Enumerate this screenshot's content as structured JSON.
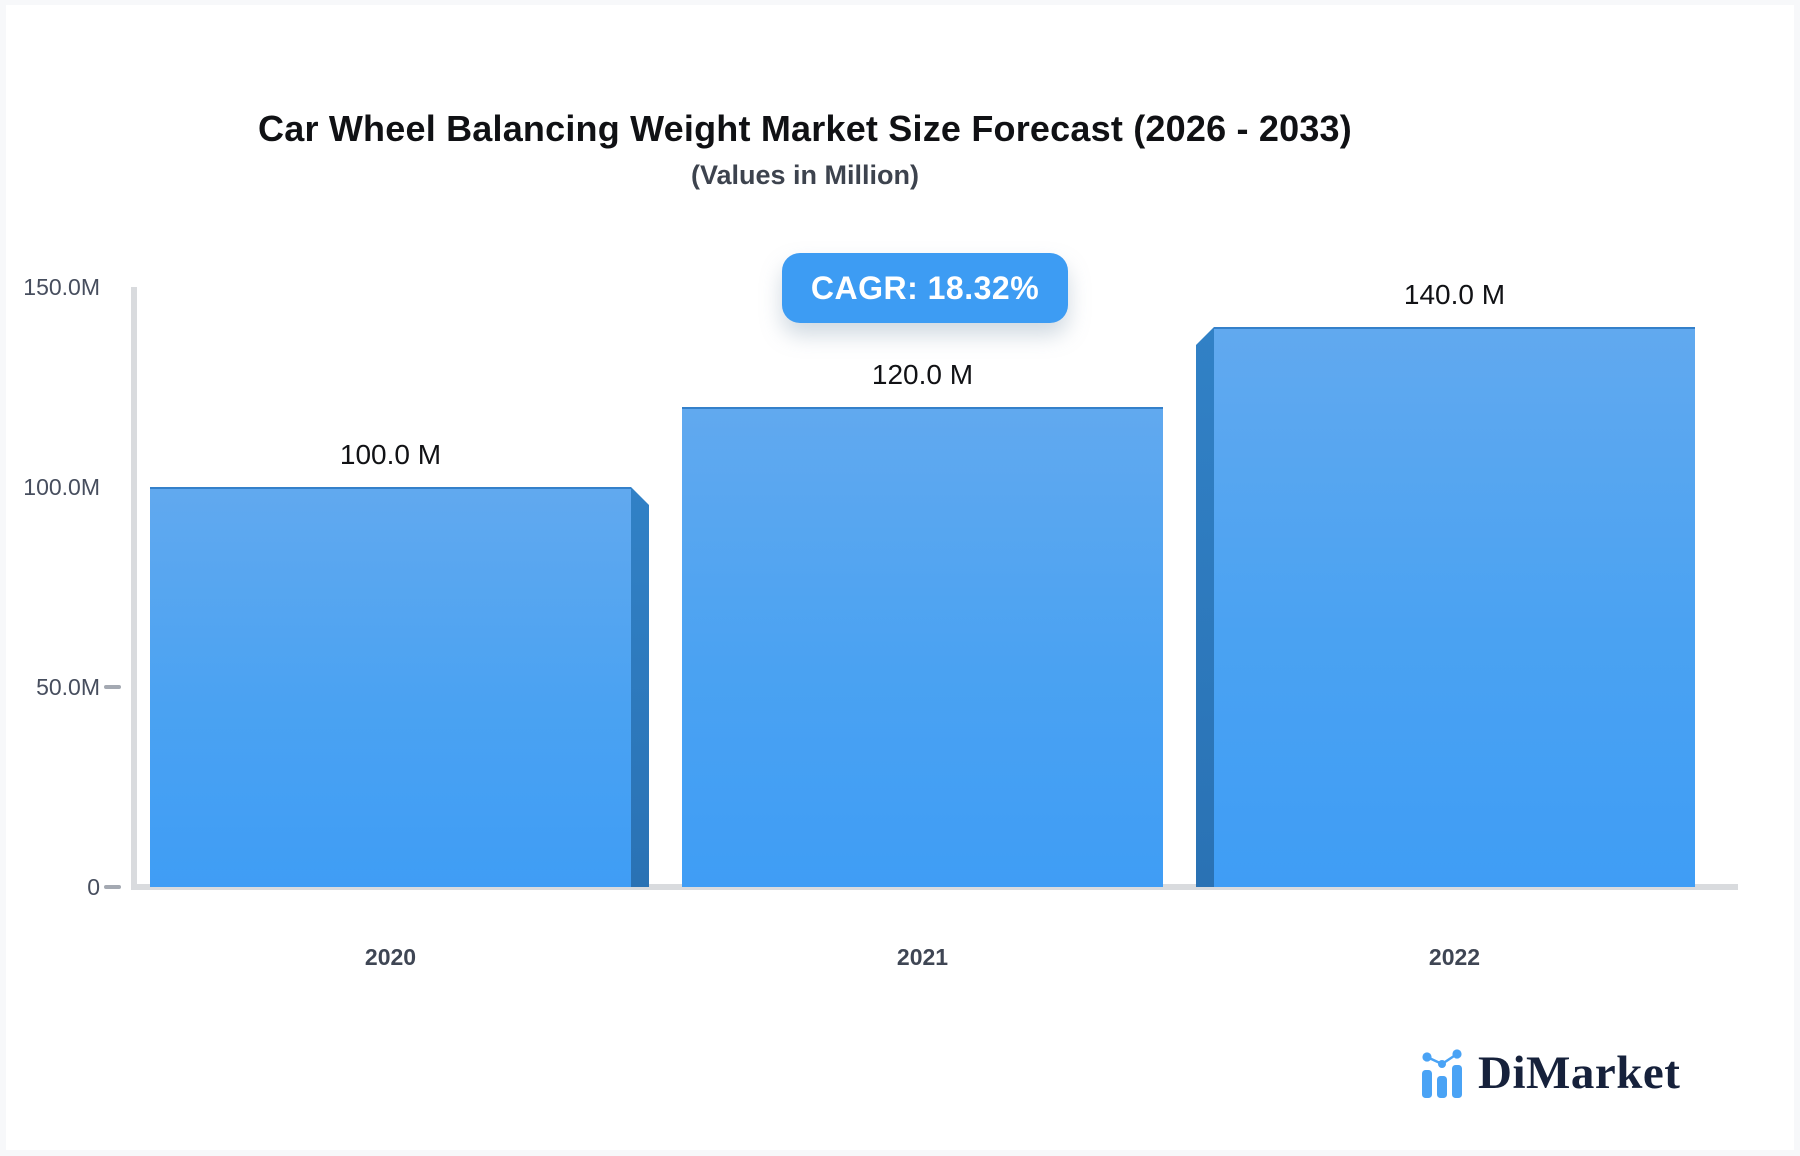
{
  "header": {
    "title": "Car Wheel Balancing Weight Market Size Forecast (2026 - 2033)",
    "subtitle": "(Values in Million)"
  },
  "badge": {
    "label": "CAGR: 18.32%",
    "color": "#3d9cf3"
  },
  "chart_data": {
    "type": "bar",
    "title": "Car Wheel Balancing Weight Market Size Forecast (2026 - 2033)",
    "subtitle": "(Values in Million)",
    "unit": "Million",
    "cagr": "18.32%",
    "categories": [
      "2020",
      "2021",
      "2022"
    ],
    "values": [
      100,
      120,
      140
    ],
    "value_labels": [
      "100.0 M",
      "120.0 M",
      "140.0 M"
    ],
    "ylim": [
      0,
      150
    ],
    "y_ticks": [
      {
        "label": "150.0M",
        "value": 150,
        "dash": false
      },
      {
        "label": "100.0M",
        "value": 100,
        "dash": false
      },
      {
        "label": "50.0M",
        "value": 50,
        "dash": true
      },
      {
        "label": "0",
        "value": 0,
        "dash": true
      }
    ],
    "grid": false,
    "legend_position": "none",
    "bar_color_top": "#61a9ef",
    "bar_color_mid": "#4aa2f2",
    "bar_color_bottom": "#3f9df5",
    "bevel_color_top": "#3181c6",
    "bevel_color_bottom": "#2a72b4",
    "axis_color": "#d9dbde"
  },
  "logo": {
    "text": "DiMarket",
    "icon": "mini-bar-chart-icon",
    "icon_color": "#4aa3f5",
    "text_color": "#16213b"
  }
}
